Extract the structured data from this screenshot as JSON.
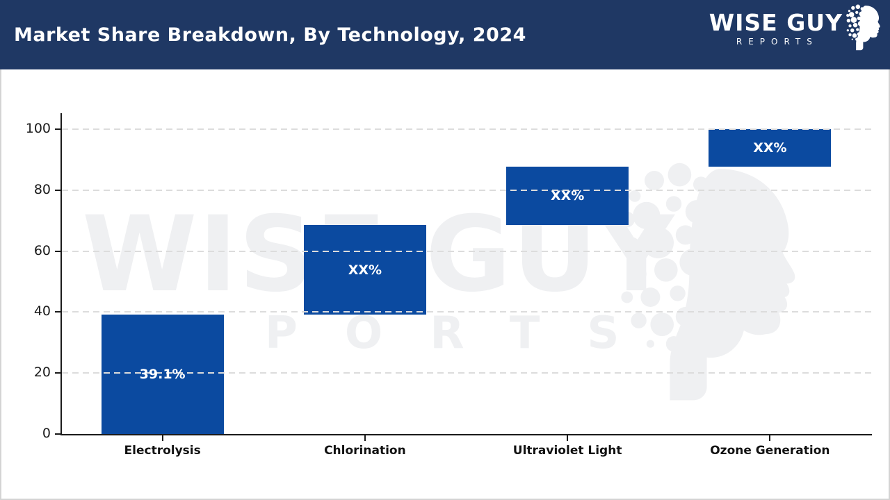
{
  "header": {
    "title": "Market Share Breakdown, By Technology, 2024",
    "logo": {
      "name": "WISE GUY",
      "tagline": "REPORTS"
    }
  },
  "watermark": {
    "line1": "WISE GUY",
    "line2": "REPORTS"
  },
  "chart_data": {
    "type": "bar",
    "subtype": "floating-waterfall",
    "title": "Market Share Breakdown, By Technology, 2024",
    "categories": [
      "Electrolysis",
      "Chlorination",
      "Ultraviolet Light",
      "Ozone Generation"
    ],
    "segments": [
      {
        "category": "Electrolysis",
        "start": 0,
        "end": 39.1,
        "value_label": "39.1%"
      },
      {
        "category": "Chlorination",
        "start": 39.1,
        "end": 68.5,
        "value_label": "XX%"
      },
      {
        "category": "Ultraviolet Light",
        "start": 68.5,
        "end": 87.7,
        "value_label": "XX%"
      },
      {
        "category": "Ozone Generation",
        "start": 87.7,
        "end": 100,
        "value_label": "XX%"
      }
    ],
    "y_ticks": [
      0,
      20,
      40,
      60,
      80,
      100
    ],
    "ylim": [
      0,
      105
    ],
    "xlabel": "",
    "ylabel": "",
    "grid": "horizontal-dashed",
    "legend": "none",
    "bar_color": "#0b4aa0",
    "value_label_color": "#ffffff"
  },
  "colors": {
    "header_bg": "#1f3864",
    "bar": "#0b4aa0",
    "grid": "#dcdcdc",
    "axis": "#1a1a1a",
    "watermark": "#eff0f2",
    "frame_border": "#d4d4d4"
  }
}
